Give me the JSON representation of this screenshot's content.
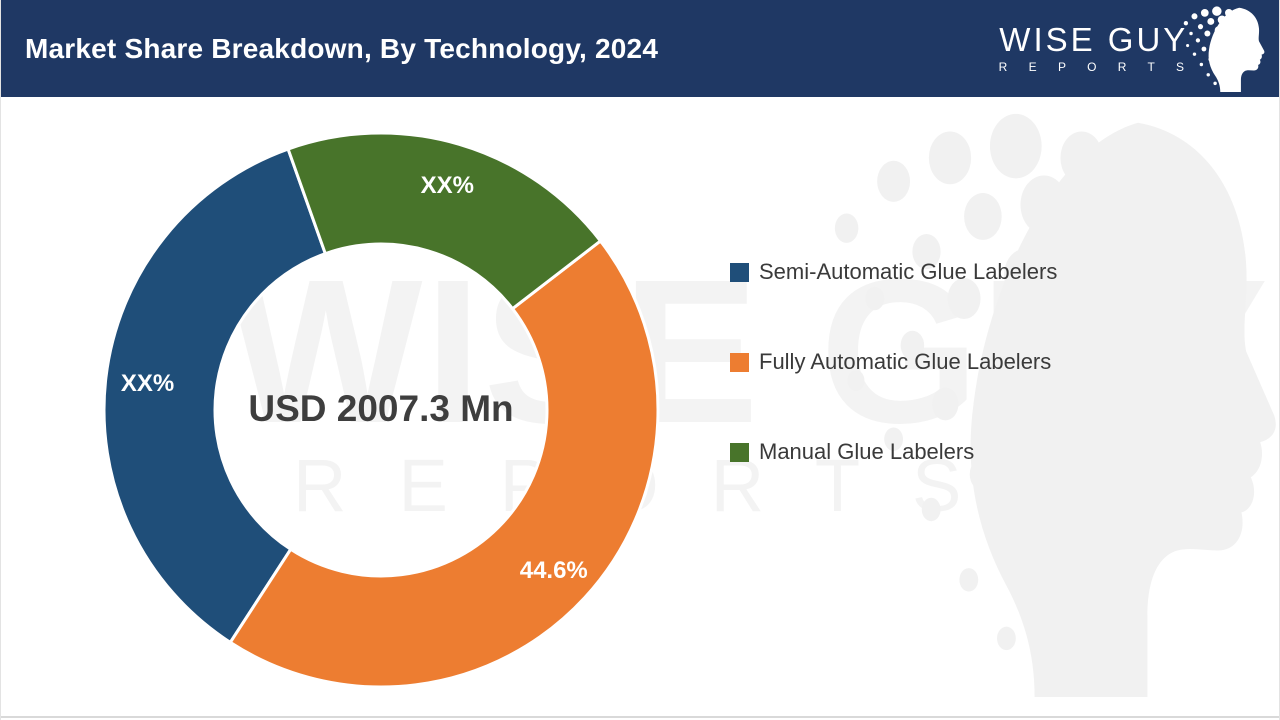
{
  "header": {
    "title": "Market Share Breakdown, By Technology, 2024",
    "logo": {
      "line1": "WISE GUY",
      "line2": "R E P O R T S"
    }
  },
  "watermark": {
    "line1": "WISE GUY",
    "line2": "REPORTS"
  },
  "chart_data": {
    "type": "pie",
    "subtype": "donut",
    "title": "Market Share Breakdown, By Technology, 2024",
    "center_label": "USD 2007.3 Mn",
    "start_angle_deg": 109.6,
    "direction": "counterclockwise",
    "legend_position": "right",
    "segments": [
      {
        "name": "Semi-Automatic Glue Labelers",
        "value": 35.4,
        "display_label": "XX%",
        "color": "#1f4e79"
      },
      {
        "name": "Fully Automatic Glue Labelers",
        "value": 44.6,
        "display_label": "44.6%",
        "color": "#ed7d31"
      },
      {
        "name": "Manual Glue Labelers",
        "value": 20.0,
        "display_label": "XX%",
        "color": "#48742a"
      }
    ]
  },
  "colors": {
    "header_bg": "#1f3864",
    "canvas_bg": "#ffffff",
    "center_text": "#3e3e3e",
    "legend_text": "#3a3a3a",
    "segment_label_text": "#ffffff",
    "separator": "#ffffff"
  }
}
